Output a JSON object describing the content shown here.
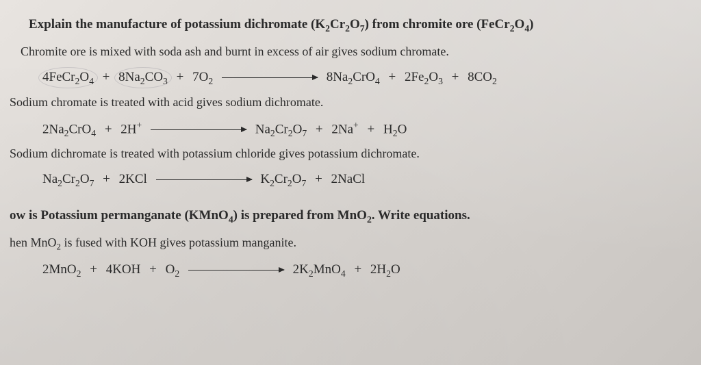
{
  "q1": {
    "title_a": "Explain the manufacture of potassium dichromate (K",
    "title_b": ") from chromite ore (FeCr",
    "title_c": ")",
    "step1_text": "Chromite ore is mixed with soda ash and burnt in excess of air gives sodium chromate.",
    "eq1": {
      "l_a": "4FeCr",
      "l_b": "O",
      "l_c": "8Na",
      "l_d": "CO",
      "l_e": "7O",
      "r_a": "8Na",
      "r_b": "CrO",
      "r_c": "2Fe",
      "r_d": "O",
      "r_e": "8CO"
    },
    "step2_text": "Sodium chromate is treated with acid gives sodium dichromate.",
    "eq2": {
      "l_a": "2Na",
      "l_b": "CrO",
      "l_c": "2H",
      "r_a": "Na",
      "r_b": "Cr",
      "r_c": "O",
      "r_d": "2Na",
      "r_e": "H",
      "r_f": "O"
    },
    "step3_text": "Sodium dichromate is treated with potassium chloride gives potassium dichromate.",
    "eq3": {
      "l_a": "Na",
      "l_b": "Cr",
      "l_c": "O",
      "l_d": "2KCl",
      "r_a": "K",
      "r_b": "Cr",
      "r_c": "O",
      "r_d": "2NaCl"
    }
  },
  "q2": {
    "title_a": "ow is Potassium permanganate (KMnO",
    "title_b": ") is prepared from MnO",
    "title_c": ". Write equations.",
    "step1_a": "hen MnO",
    "step1_b": " is fused with KOH gives potassium manganite.",
    "eq1": {
      "l_a": "2MnO",
      "l_b": "4KOH",
      "l_c": "O",
      "r_a": "2K",
      "r_b": "MnO",
      "r_c": "2H",
      "r_d": "O"
    }
  },
  "sym": {
    "plus": "+"
  }
}
